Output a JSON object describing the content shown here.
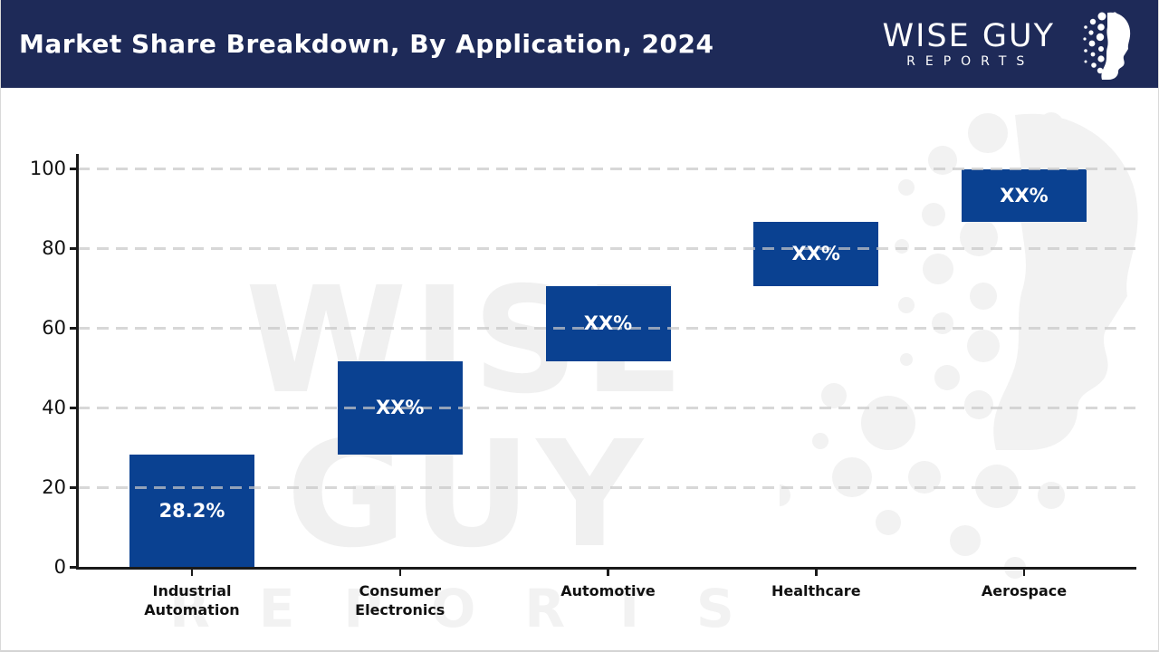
{
  "header": {
    "title": "Market Share Breakdown, By Application, 2024",
    "logo": {
      "line1": "WISE GUY",
      "line2": "REPORTS"
    }
  },
  "watermark": {
    "line1": "WISE GUY",
    "line2": "REPORTS"
  },
  "chart_data": {
    "type": "bar",
    "subtype": "waterfall",
    "title": "Market Share Breakdown, By Application, 2024",
    "xlabel": "",
    "ylabel": "",
    "ylim": [
      0,
      105
    ],
    "yticks": [
      0,
      20,
      40,
      60,
      80,
      100
    ],
    "grid": "horizontal-dashed",
    "bar_color": "#0a4191",
    "bar_label_color": "#ffffff",
    "categories": [
      "Industrial Automation",
      "Consumer Electronics",
      "Automotive",
      "Healthcare",
      "Aerospace"
    ],
    "category_label_lines": [
      [
        "Industrial",
        "Automation"
      ],
      [
        "Consumer",
        "Electronics"
      ],
      [
        "Automotive"
      ],
      [
        "Healthcare"
      ],
      [
        "Aerospace"
      ]
    ],
    "series": [
      {
        "name": "Market Share",
        "segments": [
          {
            "category": "Industrial Automation",
            "start": 0,
            "end": 28.2,
            "label": "28.2%"
          },
          {
            "category": "Consumer Electronics",
            "start": 28.2,
            "end": 51.8,
            "label": "XX%"
          },
          {
            "category": "Automotive",
            "start": 51.8,
            "end": 70.5,
            "label": "XX%"
          },
          {
            "category": "Healthcare",
            "start": 70.5,
            "end": 86.8,
            "label": "XX%"
          },
          {
            "category": "Aerospace",
            "start": 86.8,
            "end": 100,
            "label": "XX%"
          }
        ]
      }
    ]
  }
}
